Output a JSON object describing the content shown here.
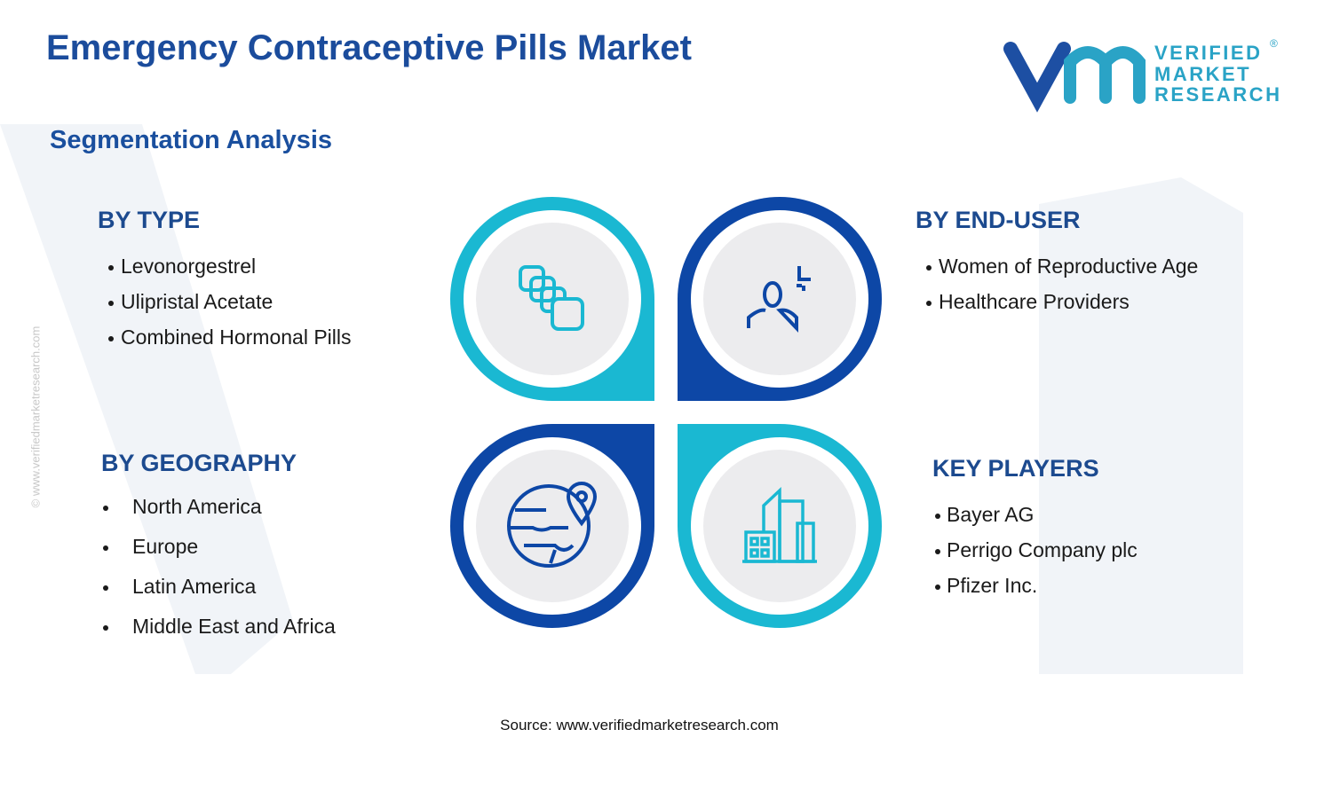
{
  "header": {
    "title": "Emergency Contraceptive Pills Market",
    "subtitle": "Segmentation Analysis"
  },
  "logo": {
    "lines": [
      "VERIFIED",
      "MARKET",
      "RESEARCH"
    ],
    "mark": "®"
  },
  "watermark": "© www.verifiedmarketresearch.com",
  "segments": [
    {
      "heading": "BY TYPE",
      "items": [
        "Levonorgestrel",
        "Ulipristal Acetate",
        "Combined Hormonal Pills"
      ]
    },
    {
      "heading": "BY END-USER",
      "items": [
        "Women of Reproductive Age",
        "Healthcare Providers"
      ]
    },
    {
      "heading": "BY GEOGRAPHY",
      "items": [
        "North America",
        "Europe",
        "Latin America",
        "Middle East and Africa"
      ]
    },
    {
      "heading": "KEY PLAYERS",
      "items": [
        "Bayer AG",
        "Perrigo Company plc",
        "Pfizer Inc."
      ]
    }
  ],
  "source": "Source: www.verifiedmarketresearch.com"
}
